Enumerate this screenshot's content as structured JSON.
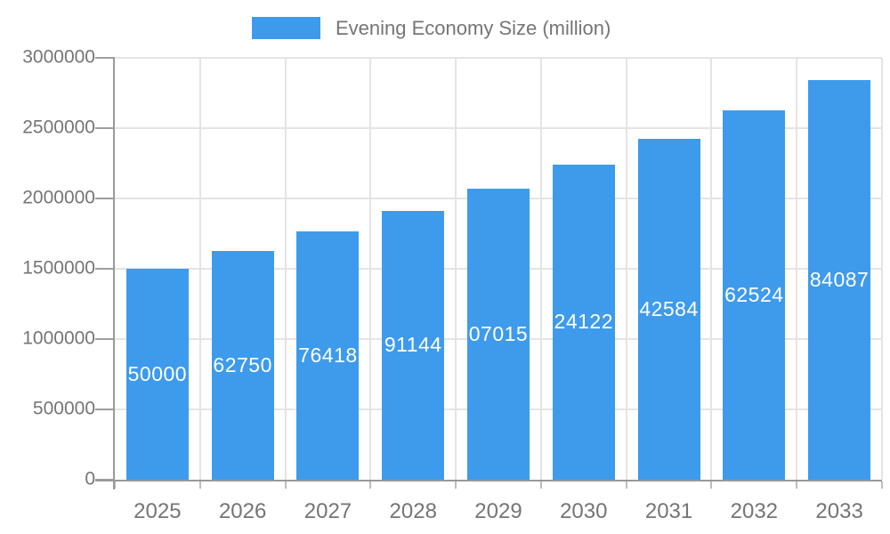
{
  "legend": {
    "label": "Evening Economy Size (million)"
  },
  "colors": {
    "bar": "#3E9BEC",
    "bar_label": "#FFFFFF",
    "axis_text": "#757575",
    "grid_line": "#E4E4E4",
    "axis_line": "#999999",
    "y_tick_mark": "#9E9E9E",
    "x_tick_mark": "#BDBDBD",
    "background": "#FFFFFF"
  },
  "chart_data": {
    "type": "bar",
    "title": "",
    "series_name": "Evening Economy Size (million)",
    "categories": [
      "2025",
      "2026",
      "2027",
      "2028",
      "2029",
      "2030",
      "2031",
      "2032",
      "2033"
    ],
    "values": [
      1500000,
      1627500,
      1764180,
      1911440,
      2070150,
      2241220,
      2425840,
      2625240,
      2840870
    ],
    "bar_value_labels_visible": [
      "50000",
      "62750",
      "76418",
      "91144",
      "07015",
      "24122",
      "42584",
      "62524",
      "84087"
    ],
    "xlabel": "",
    "ylabel": "",
    "ylim": [
      0,
      3000000
    ],
    "ytick_interval": 500000,
    "ytick_labels": [
      "0",
      "500000",
      "1000000",
      "1500000",
      "2000000",
      "2500000",
      "3000000"
    ],
    "grid": true,
    "legend_position": "top"
  }
}
